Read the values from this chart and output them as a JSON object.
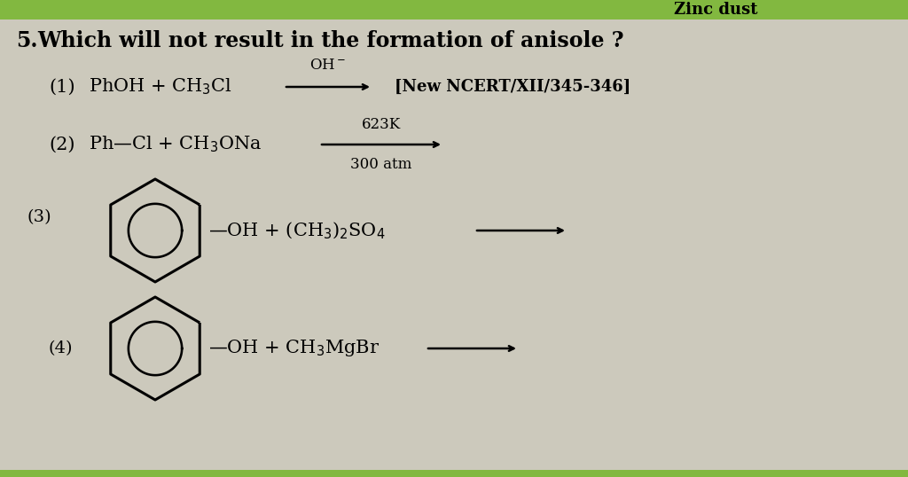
{
  "background_color": "#ccc9bc",
  "page_color": "#d6d2c4",
  "title_text": "Which will not result in the formation of anisole ?",
  "question_number": "5.",
  "ncert_ref": "[New NCERT/XII/345-346]",
  "header_text": "Zinc dust",
  "green_color": "#82b840",
  "option1_label": "(1)",
  "option1_eq": "PhOH + CH$_3$Cl",
  "option1_arrow_label": "OH$^-$",
  "option2_label": "(2)",
  "option2_eq": "Ph—Cl + CH$_3$ONa",
  "option2_arrow_top": "623K",
  "option2_arrow_bot": "300 atm",
  "option3_label": "(3)",
  "option3_eq2": "—OH + (CH$_3$)$_2$SO$_4$",
  "option4_label": "(4)",
  "option4_eq2": "—OH + CH$_3$MgBr"
}
